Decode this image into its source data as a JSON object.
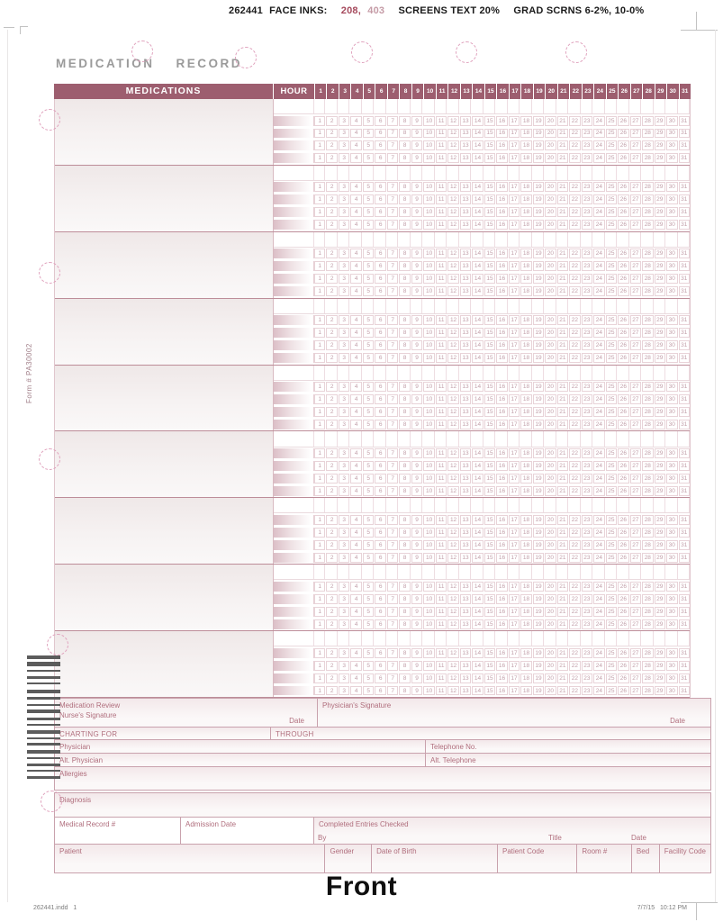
{
  "proof_header": {
    "job": "262441",
    "face_inks": "FACE INKS:",
    "ink1": "208,",
    "ink2": "403",
    "screens": "SCREENS  TEXT 20%",
    "grads": "GRAD SCRNS  6-2%, 10-0%"
  },
  "title": {
    "word1": "MEDICATION",
    "word2": "RECORD"
  },
  "side": {
    "form_number": "Form # PA30002"
  },
  "grid": {
    "medications_header": "MEDICATIONS",
    "hour_header": "HOUR",
    "days": [
      1,
      2,
      3,
      4,
      5,
      6,
      7,
      8,
      9,
      10,
      11,
      12,
      13,
      14,
      15,
      16,
      17,
      18,
      19,
      20,
      21,
      22,
      23,
      24,
      25,
      26,
      27,
      28,
      29,
      30,
      31
    ],
    "block_count": 9,
    "numbered_rows_per_block": 4
  },
  "review": {
    "medication_review": "Medication Review",
    "nurses_signature": "Nurse's Signature",
    "date_left": "Date",
    "physicians_signature": "Physician's Signature",
    "date_right": "Date"
  },
  "charting": {
    "charting_for": "CHARTING FOR",
    "through": "THROUGH"
  },
  "contacts": [
    {
      "left": "Physician",
      "right": "Telephone No."
    },
    {
      "left": "Alt. Physician",
      "right": "Alt. Telephone"
    }
  ],
  "allergies": "Allergies",
  "diagnosis": "Diagnosis",
  "record": {
    "medical_record": "Medical Record #",
    "admission_date": "Admission Date",
    "completed": "Completed Entries Checked",
    "by": "By",
    "title": "Title",
    "date": "Date"
  },
  "patient_row": [
    "Patient",
    "Gender",
    "Date of Birth",
    "Patient Code",
    "Room #",
    "Bed",
    "Facility Code"
  ],
  "front_label": "Front",
  "footer": {
    "file": "262441.indd   1",
    "datetime": "7/7/15   10:12 PM"
  },
  "colors": {
    "maroon": "#9d5e6f",
    "grid_number": "#c29fa9",
    "label": "#b06e7d",
    "ink1": "#a5495c",
    "ink2": "#c59ba6"
  }
}
